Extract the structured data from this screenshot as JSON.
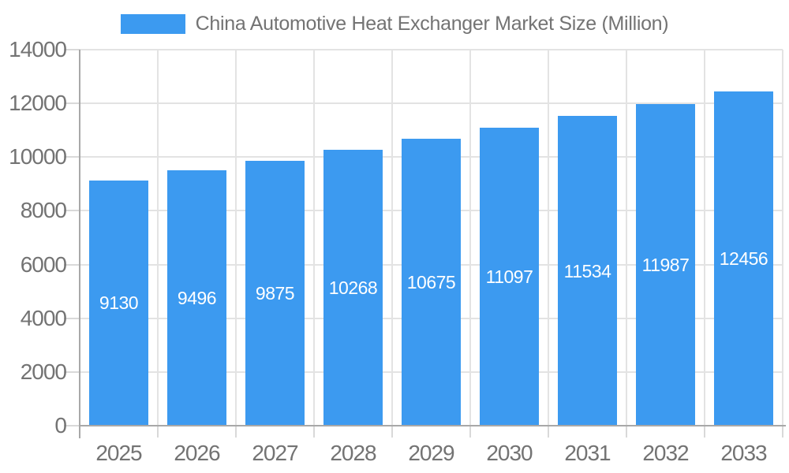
{
  "chart_data": {
    "type": "bar",
    "title": "China Automotive Heat Exchanger Market Size (Million)",
    "categories": [
      "2025",
      "2026",
      "2027",
      "2028",
      "2029",
      "2030",
      "2031",
      "2032",
      "2033"
    ],
    "values": [
      9130,
      9496,
      9875,
      10268,
      10675,
      11097,
      11534,
      11987,
      12456
    ],
    "bar_value_labels": [
      "9130",
      "9496",
      "9875",
      "10268",
      "10675",
      "11097",
      "11534",
      "11987",
      "12456"
    ],
    "xlabel": "",
    "ylabel": "",
    "ylim": [
      0,
      14000
    ],
    "yticks": [
      0,
      2000,
      4000,
      6000,
      8000,
      10000,
      12000,
      14000
    ],
    "grid": true,
    "legend_position": "top-center",
    "colors": {
      "bar": "#3C9AF0",
      "bar_label_text": "#ffffff",
      "axis_text": "#737373",
      "gridline": "#e3e3e3",
      "tick": "#d9d9d9",
      "axis_line": "#a8a8a8",
      "background": "#ffffff"
    }
  },
  "legend": {
    "items": [
      {
        "label": "China Automotive Heat Exchanger Market Size (Million)",
        "color": "#3C9AF0"
      }
    ]
  }
}
